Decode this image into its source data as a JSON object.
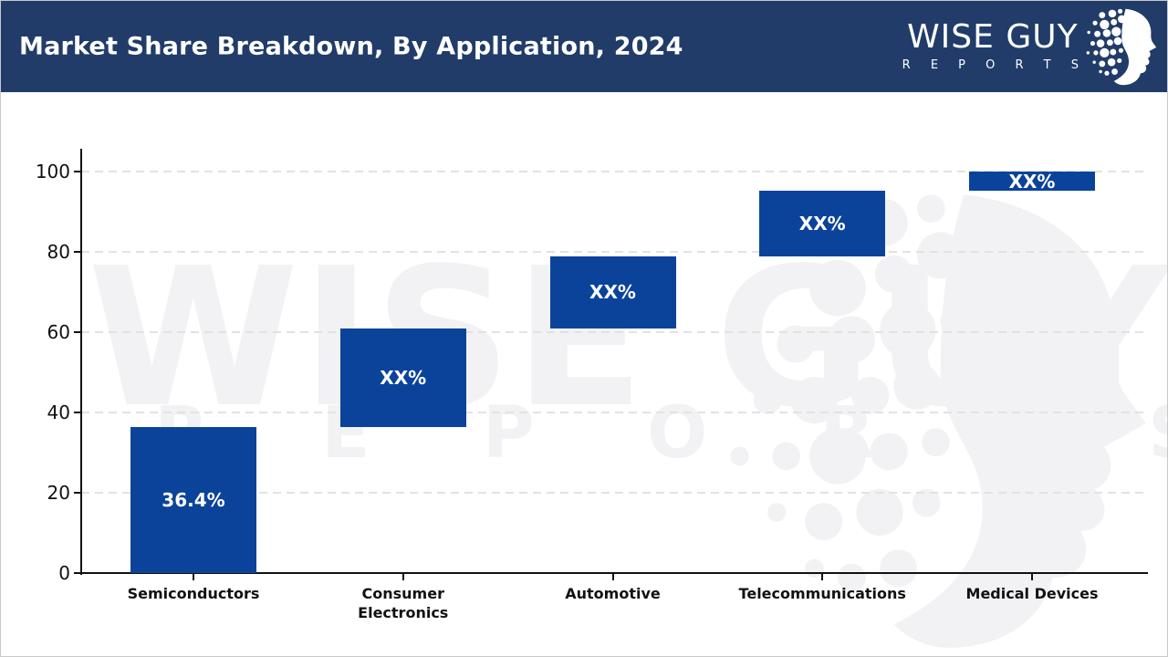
{
  "header": {
    "title": "Market Share Breakdown, By Application, 2024",
    "logo": {
      "name_top": "WISE GUY",
      "name_bottom": "R E P O R T S",
      "face_icon": "dot-face-profile"
    },
    "bg_color": "#213c69"
  },
  "watermark": {
    "line1": "WISE GUY",
    "line2": "R E P O R T S"
  },
  "chart_data": {
    "type": "bar",
    "subtype": "waterfall",
    "title": "Market Share Breakdown, By Application, 2024",
    "categories": [
      "Semiconductors",
      "Consumer\nElectronics",
      "Automotive",
      "Telecommunications",
      "Medical Devices"
    ],
    "segments": [
      {
        "category": "Semiconductors",
        "start": 0,
        "end": 36.4,
        "value": 36.4,
        "label": "36.4%"
      },
      {
        "category": "Consumer Electronics",
        "start": 36.4,
        "end": 60.9,
        "value": 24.5,
        "label": "XX%"
      },
      {
        "category": "Automotive",
        "start": 60.9,
        "end": 78.9,
        "value": 18.0,
        "label": "XX%"
      },
      {
        "category": "Telecommunications",
        "start": 78.9,
        "end": 95.2,
        "value": 16.3,
        "label": "XX%"
      },
      {
        "category": "Medical Devices",
        "start": 95.2,
        "end": 100,
        "value": 4.8,
        "label": "XX%"
      }
    ],
    "xlabel": "",
    "ylabel": "",
    "ylim": [
      0,
      100
    ],
    "yticks": [
      0,
      20,
      40,
      60,
      80,
      100
    ],
    "grid": "horizontal-dashed",
    "legend": "none",
    "bar_color": "#0c439a",
    "bar_label_color": "#ffffff"
  }
}
